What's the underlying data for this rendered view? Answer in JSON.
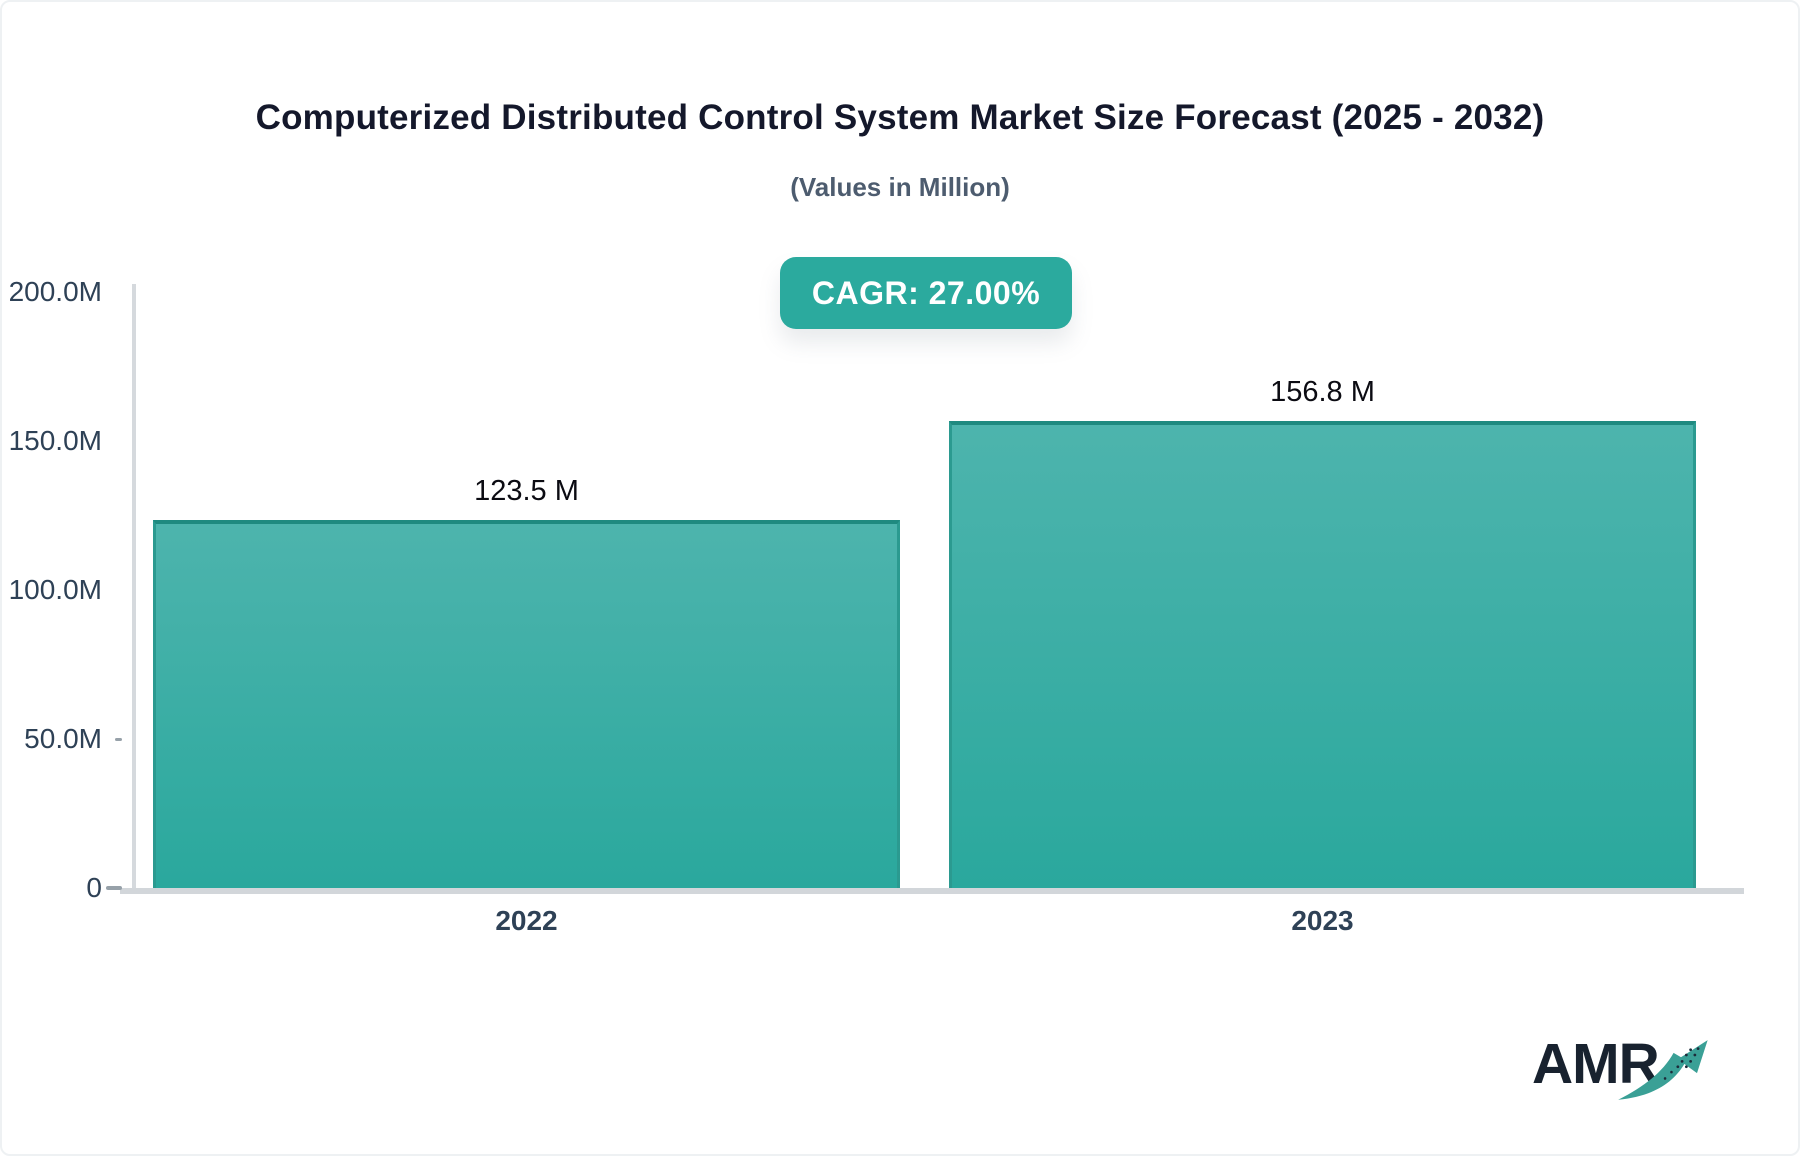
{
  "header": {
    "title": "Computerized Distributed Control System Market Size Forecast (2025 - 2032)",
    "subtitle": "(Values in Million)",
    "cagr_label": "CAGR: 27.00%"
  },
  "logo": {
    "text": "AMR",
    "icon": "trend-up-arrow-icon"
  },
  "colors": {
    "badge_bg": "#2baa9e",
    "bar_fill_top": "#4db4ad",
    "bar_fill_bottom": "#2aa89d",
    "bar_border_top": "#1f8a80",
    "bar_border_side": "#2b9a90",
    "axis_line": "#d3d7db",
    "title_text": "#14182b",
    "subtitle_text": "#4d5c6f",
    "tick_text": "#2e4156",
    "value_text": "#0b0b12",
    "logo_text": "#18222f",
    "logo_arrow": "#3aa096"
  },
  "chart_data": {
    "type": "bar",
    "title": "Computerized Distributed Control System Market Size Forecast (2025 - 2032)",
    "subtitle": "(Values in Million)",
    "cagr": "27.00%",
    "unit": "Million",
    "categories": [
      "2022",
      "2023"
    ],
    "values": [
      123.5,
      156.8
    ],
    "value_labels": [
      "123.5 M",
      "156.8 M"
    ],
    "xlabel": "",
    "ylabel": "",
    "ylim": [
      0,
      200
    ],
    "grid": false,
    "legend": "none",
    "y_ticks": [
      {
        "label": "200.0M",
        "value": 200,
        "dash": "none"
      },
      {
        "label": "150.0M",
        "value": 150,
        "dash": "none"
      },
      {
        "label": "100.0M",
        "value": 100,
        "dash": "none"
      },
      {
        "label": "50.0M",
        "value": 50,
        "dash": "short"
      },
      {
        "label": "0",
        "value": 0,
        "dash": "long"
      }
    ]
  }
}
